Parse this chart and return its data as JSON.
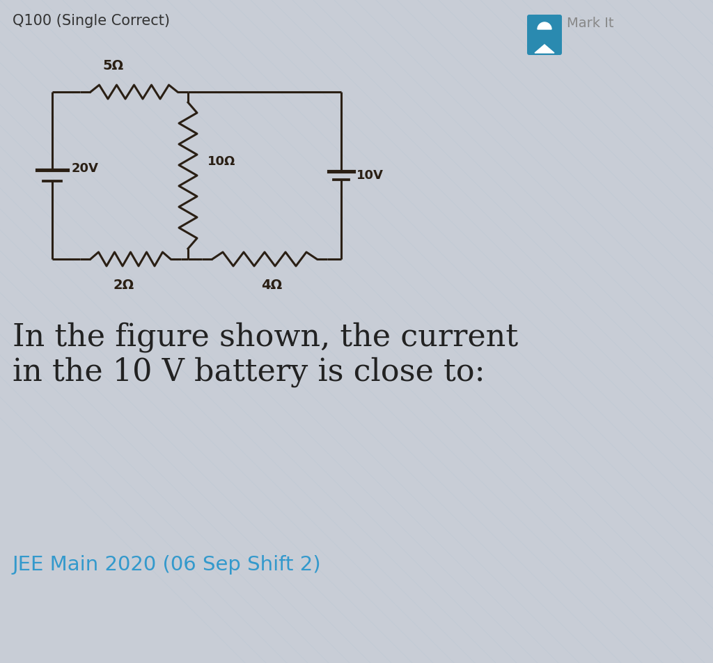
{
  "bg_color": "#c8cdd6",
  "title_text": "Q100 (Single Correct)",
  "title_color": "#333333",
  "mark_it_text": "Mark It",
  "mark_it_color": "#888888",
  "mark_it_icon_color": "#2a8ab0",
  "question_text1": "In the figure shown, the current",
  "question_text2": "in the 10 V battery is close to:",
  "question_color": "#222222",
  "jee_text": "JEE Main 2020 (06 Sep Shift 2)",
  "jee_color": "#3399cc",
  "circuit_color": "#2a1f14",
  "resistor_5": "5Ω",
  "resistor_10": "10Ω",
  "resistor_2": "2Ω",
  "resistor_4": "4Ω",
  "battery_20": "20V",
  "battery_10": "10V",
  "lw": 2.2
}
